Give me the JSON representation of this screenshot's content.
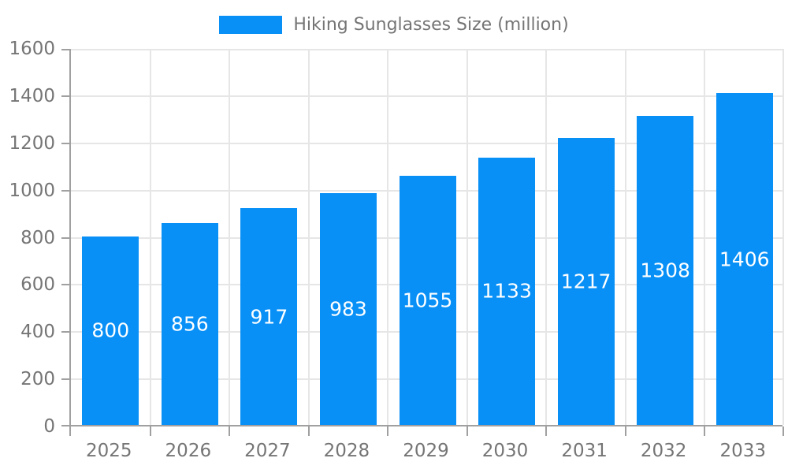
{
  "chart_data": {
    "type": "bar",
    "title": "Hiking Sunglasses Size (million)",
    "categories": [
      "2025",
      "2026",
      "2027",
      "2028",
      "2029",
      "2030",
      "2031",
      "2032",
      "2033"
    ],
    "values": [
      800,
      856,
      917,
      983,
      1055,
      1133,
      1217,
      1308,
      1406
    ],
    "xlabel": "",
    "ylabel": "",
    "ylim": [
      0,
      1600
    ],
    "yticks": [
      0,
      200,
      400,
      600,
      800,
      1000,
      1200,
      1400,
      1600
    ],
    "grid": true,
    "legend": {
      "label": "Hiking Sunglasses Size (million)",
      "position": "top-center"
    },
    "colors": {
      "bar": "#0890f7",
      "bar_value_label": "#ffffff",
      "axis_text": "#757575",
      "axis_line": "#a0a0a0",
      "gridline": "#e6e6e6",
      "background": "#ffffff"
    }
  }
}
